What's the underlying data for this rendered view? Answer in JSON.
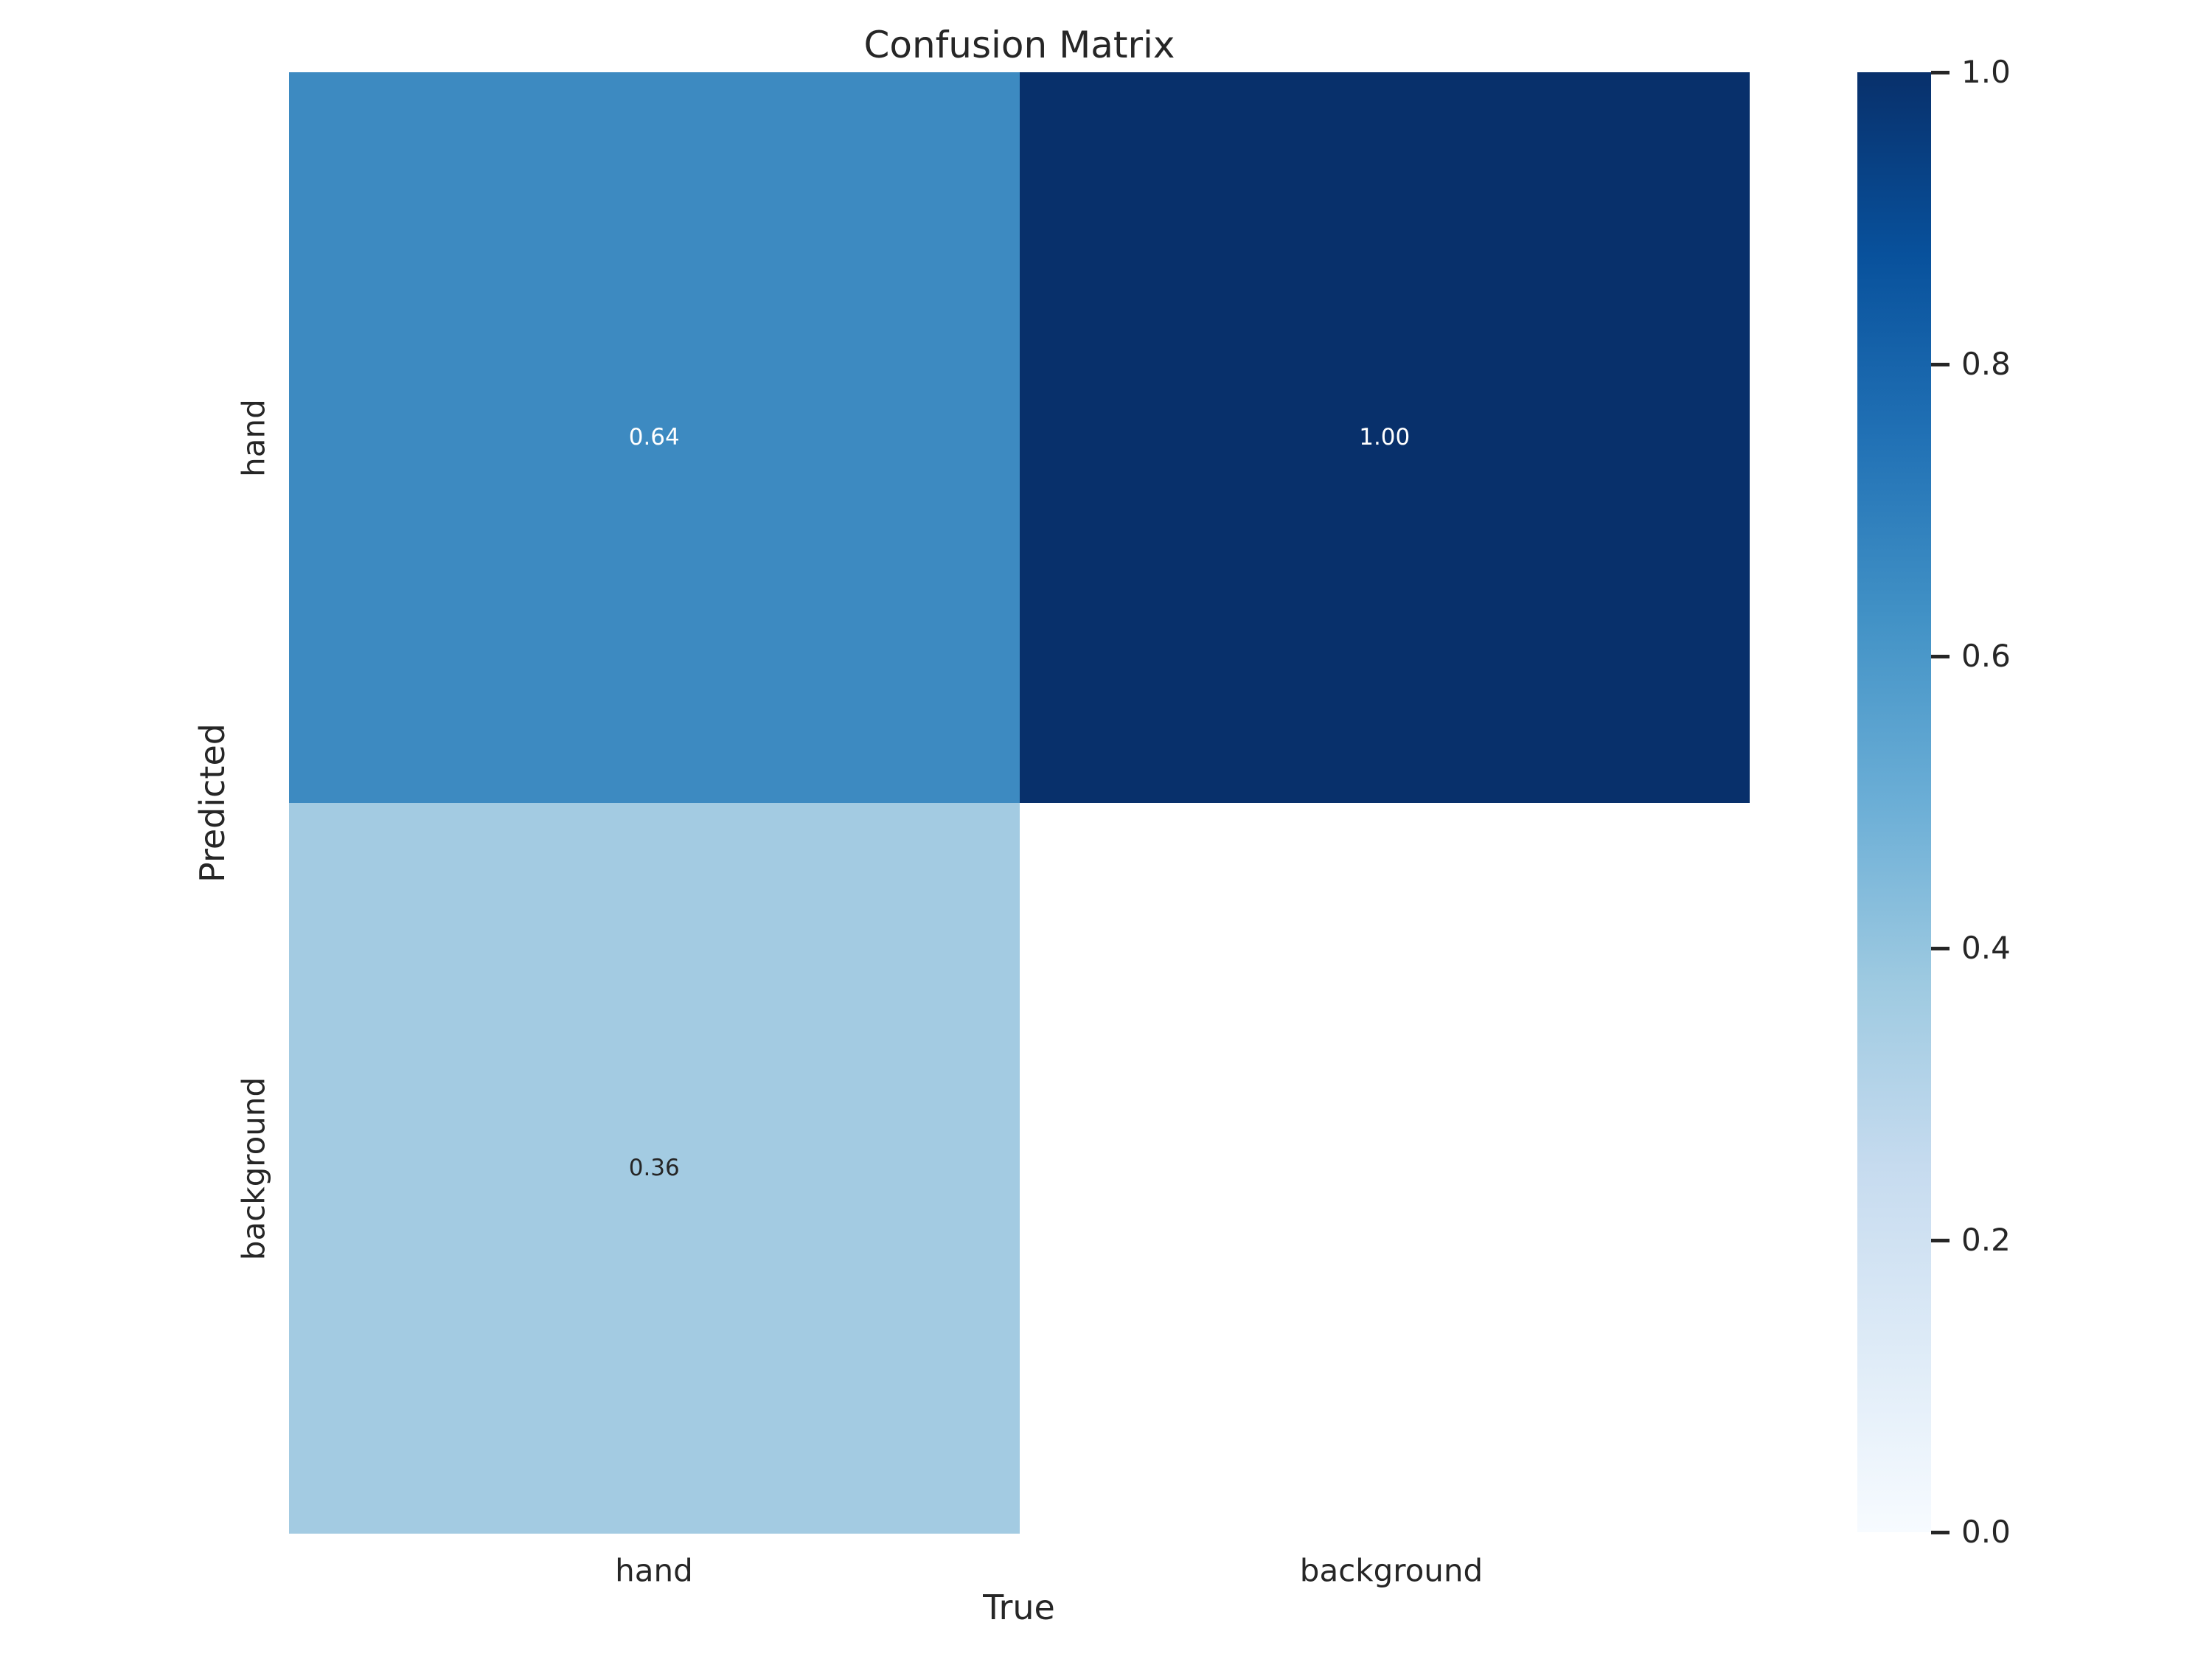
{
  "title": "Confusion Matrix",
  "text_color": "#262626",
  "chart_data": {
    "type": "heatmap",
    "title": "Confusion Matrix",
    "xlabel": "True",
    "ylabel": "Predicted",
    "x_categories": [
      "hand",
      "background"
    ],
    "y_categories": [
      "hand",
      "background"
    ],
    "values": [
      [
        0.64,
        1.0
      ],
      [
        0.36,
        null
      ]
    ],
    "cells": [
      {
        "row": "hand",
        "col": "hand",
        "value": 0.64,
        "label": "0.64",
        "color": "#3d8ac1",
        "text_color": "#ffffff"
      },
      {
        "row": "hand",
        "col": "background",
        "value": 1.0,
        "label": "1.00",
        "color": "#08306b",
        "text_color": "#ffffff"
      },
      {
        "row": "background",
        "col": "hand",
        "value": 0.36,
        "label": "0.36",
        "color": "#a3cbe2",
        "text_color": "#262626"
      },
      {
        "row": "background",
        "col": "background",
        "value": null,
        "label": "",
        "color": "#ffffff",
        "text_color": "#262626"
      }
    ],
    "colorbar": {
      "min": 0.0,
      "max": 1.0,
      "ticks": [
        "1.0",
        "0.8",
        "0.6",
        "0.4",
        "0.2",
        "0.0"
      ],
      "colormap": "Blues",
      "gradient_stops_top_to_bottom": [
        "#08306b",
        "#08519c",
        "#2171b5",
        "#4292c6",
        "#6baed6",
        "#9ecae1",
        "#c6dbef",
        "#deebf7",
        "#f7fbff"
      ]
    },
    "grid": false,
    "legend_position": "right-colorbar"
  }
}
